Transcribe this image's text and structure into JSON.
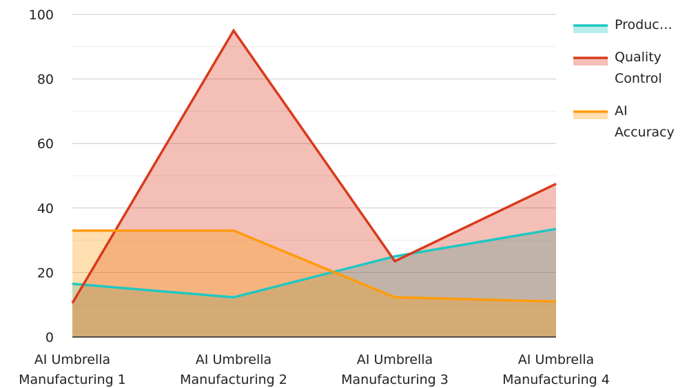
{
  "chart_data": {
    "type": "area",
    "title": "",
    "xlabel": "",
    "ylabel": "",
    "ylim": [
      0,
      100
    ],
    "yticks": [
      0,
      20,
      40,
      60,
      80,
      100
    ],
    "grid": true,
    "legend_position": "right",
    "categories": [
      [
        "AI Umbrella",
        "Manufacturing 1"
      ],
      [
        "AI Umbrella",
        "Manufacturing 2"
      ],
      [
        "AI Umbrella",
        "Manufacturing 3"
      ],
      [
        "AI Umbrella",
        "Manufacturing 4"
      ]
    ],
    "series": [
      {
        "name": "Produc…",
        "color": "#1fc7c2",
        "values": [
          16.5,
          12.3,
          25,
          33.5
        ]
      },
      {
        "name": "Quality Control",
        "legend_lines": [
          "Quality",
          "Control"
        ],
        "color": "#d9391c",
        "values": [
          10.5,
          95,
          23.5,
          47.5
        ]
      },
      {
        "name": "AI Accuracy",
        "legend_lines": [
          "AI",
          "Accuracy"
        ],
        "color": "#ff9b0a",
        "values": [
          33,
          33,
          12.3,
          11
        ]
      }
    ]
  }
}
